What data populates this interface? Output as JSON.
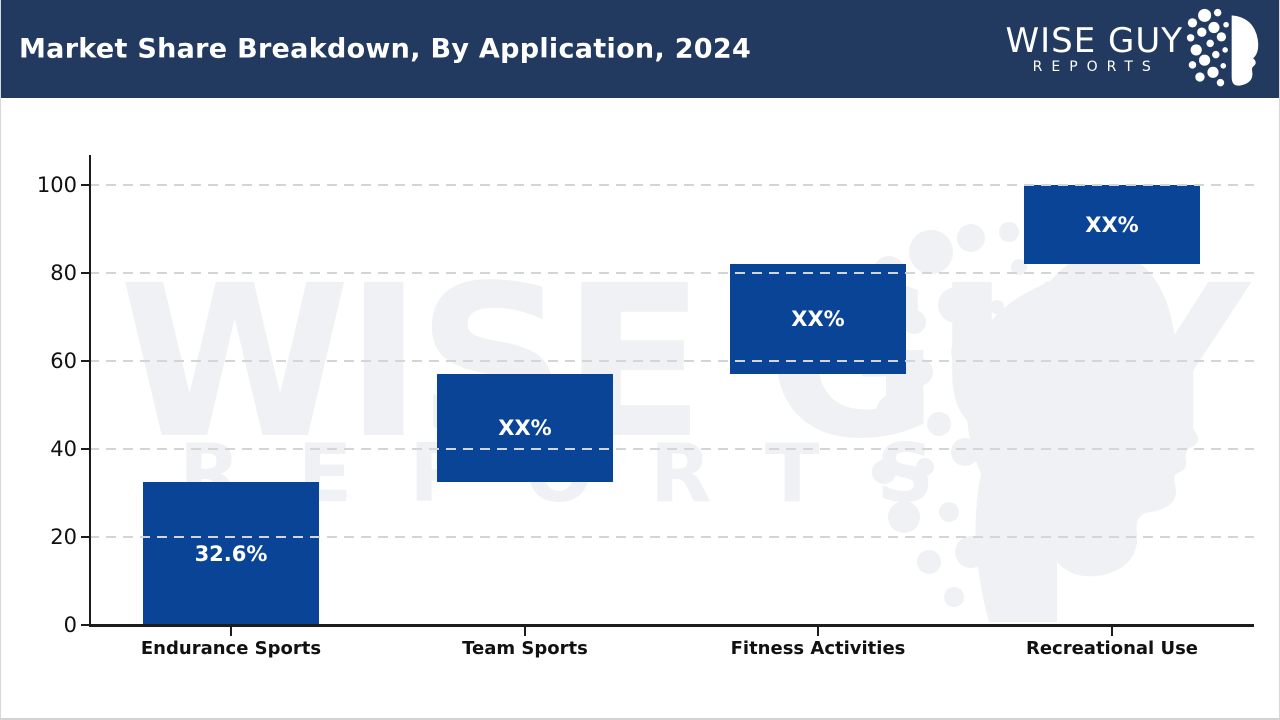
{
  "header": {
    "title": "Market Share Breakdown, By Application, 2024",
    "logo": {
      "wordmark": "WISE GUY",
      "subtitle": "REPORTS",
      "face_icon": "dotted-head-profile"
    }
  },
  "watermark": {
    "wordmark": "WISE GUY",
    "subtitle": "REPORTS",
    "face_icon": "dotted-head-profile"
  },
  "colors": {
    "header_bg": "#223a5f",
    "bar": "#0a4496",
    "grid": "#d5d5d5",
    "axis": "#1c1c1c",
    "bar_label": "#ffffff",
    "watermark": "#f0f1f4"
  },
  "chart_data": {
    "type": "bar",
    "variant": "floating-waterfall",
    "title": "Market Share Breakdown, By Application, 2024",
    "categories": [
      "Endurance Sports",
      "Team Sports",
      "Fitness Activities",
      "Recreational Use"
    ],
    "series": [
      {
        "name": "Market share (%)",
        "segments": [
          {
            "category": "Endurance Sports",
            "start": 0,
            "end": 32.6,
            "label": "32.6%"
          },
          {
            "category": "Team Sports",
            "start": 32.6,
            "end": 57,
            "label": "XX%"
          },
          {
            "category": "Fitness Activities",
            "start": 57,
            "end": 82,
            "label": "XX%"
          },
          {
            "category": "Recreational Use",
            "start": 82,
            "end": 100,
            "label": "XX%"
          }
        ]
      }
    ],
    "xlabel": "",
    "ylabel": "",
    "yticks": [
      0,
      20,
      40,
      60,
      80,
      100
    ],
    "ylim": [
      0,
      105
    ],
    "grid": "horizontal-dashed",
    "legend": "none",
    "bar_color": "#0a4496",
    "value_label_color": "#ffffff"
  }
}
